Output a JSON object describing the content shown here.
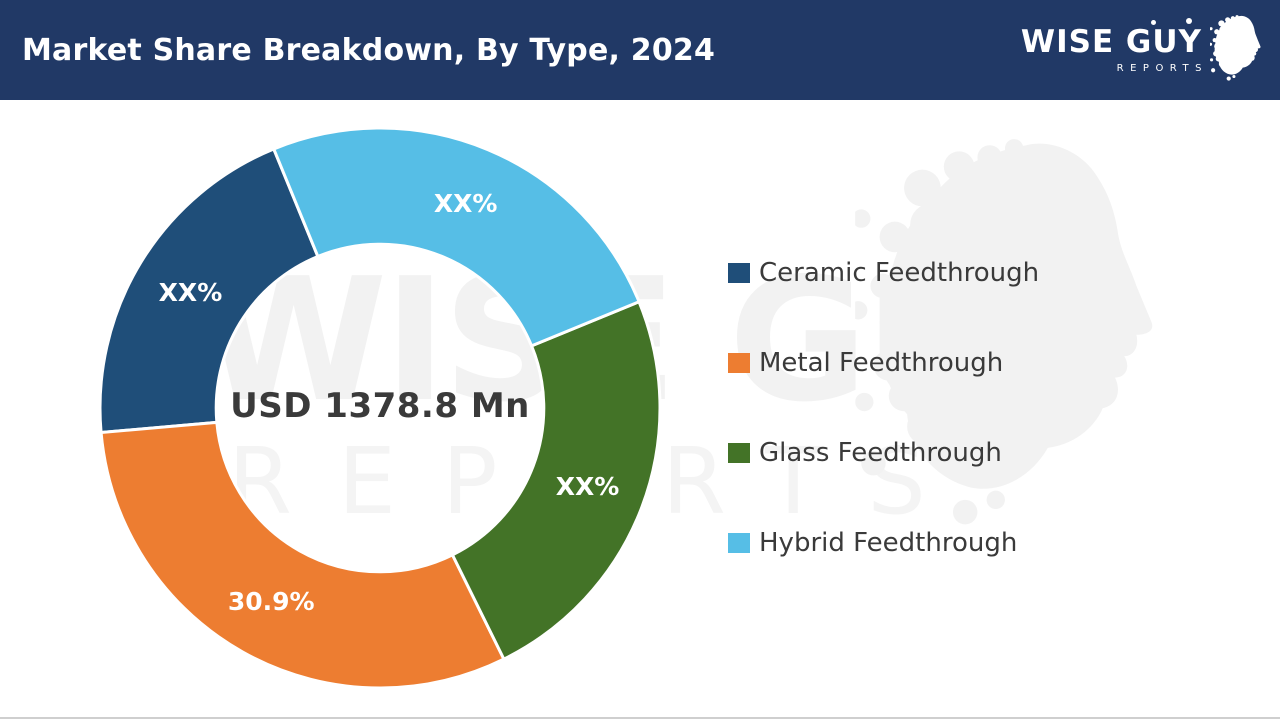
{
  "header": {
    "title": "Market Share Breakdown, By Type, 2024",
    "logo": {
      "line1": "WISE GUY",
      "line2": "REPORTS"
    }
  },
  "watermark": {
    "line1": "WISE GUY",
    "line2": "REPORTS"
  },
  "chart_data": {
    "type": "pie",
    "subtype": "donut",
    "title": "Market Share Breakdown, By Type, 2024",
    "center_label": "USD 1378.8 Mn",
    "start_angle_deg": 112.3,
    "direction": "counterclockwise",
    "donut_hole_ratio": 0.585,
    "legend_position": "right",
    "categories": [
      "Ceramic Feedthrough",
      "Metal Feedthrough",
      "Glass Feedthrough",
      "Hybrid Feedthrough"
    ],
    "segments": [
      {
        "name": "Ceramic Feedthrough",
        "value_pct": 20.2,
        "display_label": "XX%",
        "color": "#1F4E79"
      },
      {
        "name": "Metal Feedthrough",
        "value_pct": 30.9,
        "display_label": "30.9%",
        "color": "#ED7D31"
      },
      {
        "name": "Glass Feedthrough",
        "value_pct": 23.9,
        "display_label": "XX%",
        "color": "#437327"
      },
      {
        "name": "Hybrid Feedthrough",
        "value_pct": 25.0,
        "display_label": "XX%",
        "color": "#56BEE6"
      }
    ]
  },
  "colors": {
    "header_bg": "#213966",
    "text_dark": "#3a3a3a",
    "watermark": "#f2f2f2",
    "footer_line": "#cfcfcf"
  }
}
